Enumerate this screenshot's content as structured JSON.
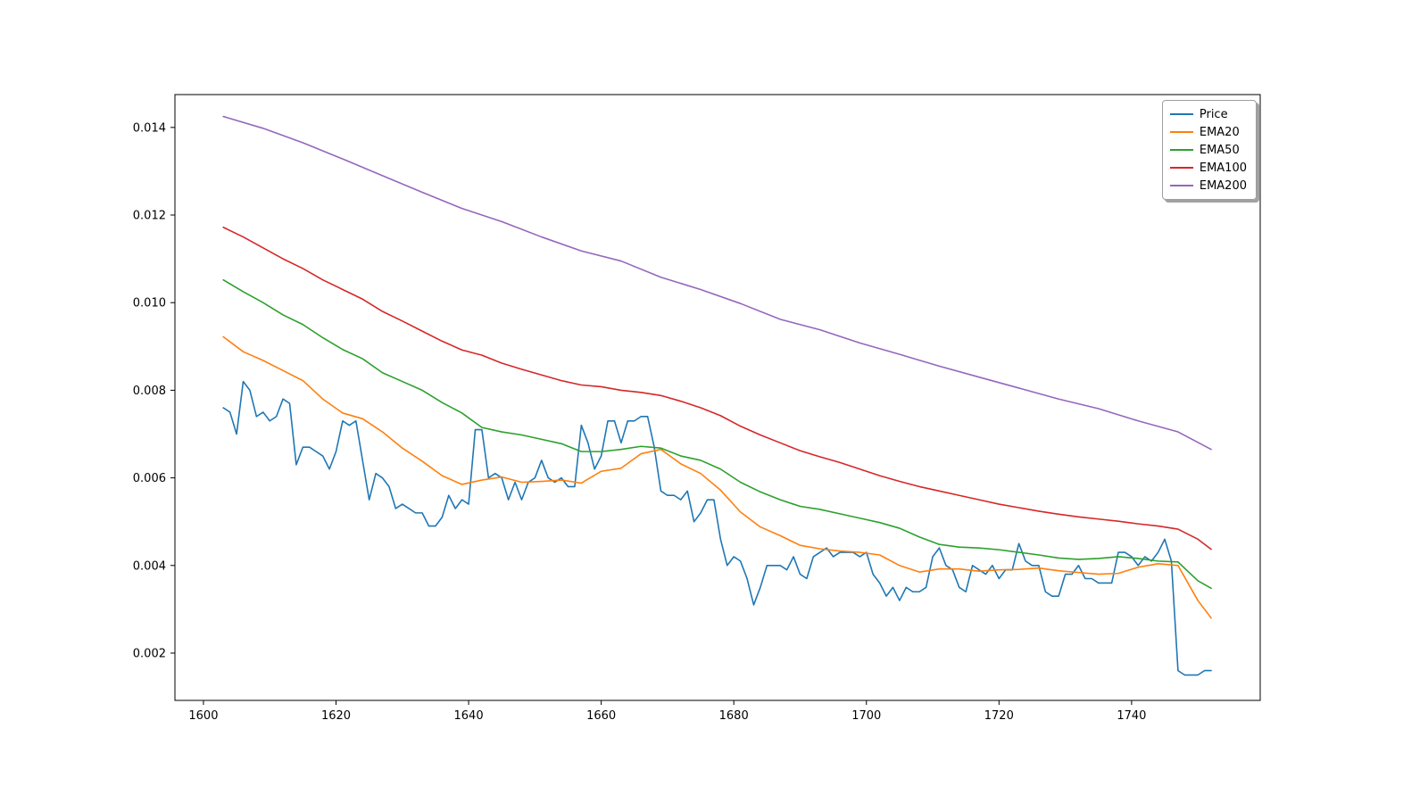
{
  "figure": {
    "background": "#ffffff"
  },
  "chart_data": {
    "type": "line",
    "title": "",
    "xlabel": "",
    "ylabel": "",
    "grid": false,
    "legend_position": "upper right",
    "xlim": [
      1595.7,
      1759.4
    ],
    "ylim": [
      0.00092,
      0.01475
    ],
    "x_ticks": [
      1600,
      1620,
      1640,
      1660,
      1680,
      1700,
      1720,
      1740
    ],
    "x_tick_labels": [
      "1600",
      "1620",
      "1640",
      "1660",
      "1680",
      "1700",
      "1720",
      "1740"
    ],
    "y_ticks": [
      0.002,
      0.004,
      0.006,
      0.008,
      0.01,
      0.012,
      0.014
    ],
    "y_tick_labels": [
      "0.002",
      "0.004",
      "0.006",
      "0.008",
      "0.010",
      "0.012",
      "0.014"
    ],
    "series": [
      {
        "name": "Price",
        "color": "#1f77b4",
        "x0": 1603,
        "dx": 1,
        "y": [
          0.0076,
          0.0075,
          0.007,
          0.0082,
          0.008,
          0.0074,
          0.0075,
          0.0073,
          0.0074,
          0.0078,
          0.0077,
          0.0063,
          0.0067,
          0.0067,
          0.0066,
          0.0065,
          0.0062,
          0.0066,
          0.0073,
          0.0072,
          0.0073,
          0.0064,
          0.0055,
          0.0061,
          0.006,
          0.0058,
          0.0053,
          0.0054,
          0.0053,
          0.0052,
          0.0052,
          0.0049,
          0.0049,
          0.0051,
          0.0056,
          0.0053,
          0.0055,
          0.0054,
          0.0071,
          0.0071,
          0.006,
          0.0061,
          0.006,
          0.0055,
          0.0059,
          0.0055,
          0.0059,
          0.006,
          0.0064,
          0.006,
          0.0059,
          0.006,
          0.0058,
          0.0058,
          0.0072,
          0.0068,
          0.0062,
          0.0065,
          0.0073,
          0.0073,
          0.0068,
          0.0073,
          0.0073,
          0.0074,
          0.0074,
          0.0067,
          0.0057,
          0.0056,
          0.0056,
          0.0055,
          0.0057,
          0.005,
          0.0052,
          0.0055,
          0.0055,
          0.0046,
          0.004,
          0.0042,
          0.0041,
          0.0037,
          0.0031,
          0.0035,
          0.004,
          0.004,
          0.004,
          0.0039,
          0.0042,
          0.0038,
          0.0037,
          0.0042,
          0.0043,
          0.0044,
          0.0042,
          0.0043,
          0.0043,
          0.0043,
          0.0042,
          0.0043,
          0.0038,
          0.0036,
          0.0033,
          0.0035,
          0.0032,
          0.0035,
          0.0034,
          0.0034,
          0.0035,
          0.0042,
          0.0044,
          0.004,
          0.0039,
          0.0035,
          0.0034,
          0.004,
          0.0039,
          0.0038,
          0.004,
          0.0037,
          0.0039,
          0.0039,
          0.0045,
          0.0041,
          0.004,
          0.004,
          0.0034,
          0.0033,
          0.0033,
          0.0038,
          0.0038,
          0.004,
          0.0037,
          0.0037,
          0.0036,
          0.0036,
          0.0036,
          0.0043,
          0.0043,
          0.0042,
          0.004,
          0.0042,
          0.0041,
          0.0043,
          0.0046,
          0.0041,
          0.0016,
          0.0015,
          0.0015,
          0.0015,
          0.0016,
          0.0016
        ]
      },
      {
        "name": "EMA20",
        "color": "#ff7f0e",
        "x": [
          1603,
          1606,
          1609,
          1612,
          1615,
          1618,
          1621,
          1624,
          1627,
          1630,
          1633,
          1636,
          1639,
          1642,
          1645,
          1648,
          1651,
          1654,
          1657,
          1660,
          1663,
          1666,
          1669,
          1672,
          1675,
          1678,
          1681,
          1684,
          1687,
          1690,
          1693,
          1696,
          1699,
          1702,
          1705,
          1708,
          1711,
          1714,
          1717,
          1720,
          1723,
          1726,
          1729,
          1732,
          1735,
          1738,
          1741,
          1744,
          1747,
          1750,
          1752
        ],
        "y": [
          0.00922,
          0.00888,
          0.00868,
          0.00845,
          0.00822,
          0.0078,
          0.00748,
          0.00735,
          0.00705,
          0.00668,
          0.00638,
          0.00605,
          0.00585,
          0.00595,
          0.00602,
          0.0059,
          0.00592,
          0.00595,
          0.00588,
          0.00615,
          0.00622,
          0.00655,
          0.00665,
          0.00632,
          0.0061,
          0.00572,
          0.00522,
          0.00488,
          0.00468,
          0.00446,
          0.00438,
          0.00433,
          0.0043,
          0.00424,
          0.004,
          0.00385,
          0.00392,
          0.00392,
          0.00387,
          0.0039,
          0.00391,
          0.00394,
          0.00388,
          0.00384,
          0.0038,
          0.00382,
          0.00396,
          0.00404,
          0.004,
          0.0032,
          0.0028
        ]
      },
      {
        "name": "EMA50",
        "color": "#2ca02c",
        "x": [
          1603,
          1606,
          1609,
          1612,
          1615,
          1618,
          1621,
          1624,
          1627,
          1630,
          1633,
          1636,
          1639,
          1642,
          1645,
          1648,
          1651,
          1654,
          1657,
          1660,
          1663,
          1666,
          1669,
          1672,
          1675,
          1678,
          1681,
          1684,
          1687,
          1690,
          1693,
          1696,
          1699,
          1702,
          1705,
          1708,
          1711,
          1714,
          1717,
          1720,
          1723,
          1726,
          1729,
          1732,
          1735,
          1738,
          1741,
          1744,
          1747,
          1750,
          1752
        ],
        "y": [
          0.01052,
          0.01025,
          0.01,
          0.00972,
          0.0095,
          0.0092,
          0.00893,
          0.00872,
          0.0084,
          0.0082,
          0.008,
          0.00772,
          0.00748,
          0.00715,
          0.00705,
          0.00698,
          0.00688,
          0.00678,
          0.0066,
          0.0066,
          0.00665,
          0.00672,
          0.00668,
          0.0065,
          0.0064,
          0.0062,
          0.0059,
          0.00568,
          0.0055,
          0.00535,
          0.00528,
          0.00518,
          0.00508,
          0.00498,
          0.00485,
          0.00465,
          0.00448,
          0.00442,
          0.0044,
          0.00436,
          0.0043,
          0.00424,
          0.00417,
          0.00414,
          0.00416,
          0.0042,
          0.00416,
          0.0041,
          0.00408,
          0.00365,
          0.00348
        ]
      },
      {
        "name": "EMA100",
        "color": "#d62728",
        "x": [
          1603,
          1606,
          1609,
          1612,
          1615,
          1618,
          1621,
          1624,
          1627,
          1630,
          1633,
          1636,
          1639,
          1642,
          1645,
          1648,
          1651,
          1654,
          1657,
          1660,
          1663,
          1666,
          1669,
          1672,
          1675,
          1678,
          1681,
          1684,
          1687,
          1690,
          1693,
          1696,
          1699,
          1702,
          1705,
          1708,
          1711,
          1714,
          1717,
          1720,
          1723,
          1726,
          1729,
          1732,
          1735,
          1738,
          1741,
          1744,
          1747,
          1750,
          1752
        ],
        "y": [
          0.01172,
          0.0115,
          0.01125,
          0.011,
          0.01078,
          0.01052,
          0.0103,
          0.01008,
          0.0098,
          0.00958,
          0.00935,
          0.00912,
          0.00892,
          0.0088,
          0.00862,
          0.00848,
          0.00835,
          0.00822,
          0.00812,
          0.00808,
          0.008,
          0.00795,
          0.00788,
          0.00775,
          0.0076,
          0.00742,
          0.00718,
          0.00698,
          0.0068,
          0.00662,
          0.00648,
          0.00635,
          0.0062,
          0.00605,
          0.00592,
          0.0058,
          0.0057,
          0.0056,
          0.0055,
          0.0054,
          0.00532,
          0.00524,
          0.00517,
          0.00511,
          0.00506,
          0.00501,
          0.00495,
          0.0049,
          0.00483,
          0.0046,
          0.00437
        ]
      },
      {
        "name": "EMA200",
        "color": "#9467bd",
        "x": [
          1603,
          1609,
          1615,
          1621,
          1627,
          1633,
          1639,
          1645,
          1651,
          1657,
          1663,
          1669,
          1675,
          1681,
          1687,
          1693,
          1699,
          1705,
          1711,
          1717,
          1723,
          1729,
          1735,
          1741,
          1747,
          1752
        ],
        "y": [
          0.01425,
          0.01398,
          0.01365,
          0.01328,
          0.0129,
          0.01252,
          0.01215,
          0.01185,
          0.0115,
          0.01118,
          0.01095,
          0.01058,
          0.0103,
          0.00998,
          0.00962,
          0.00938,
          0.00908,
          0.00882,
          0.00855,
          0.0083,
          0.00805,
          0.0078,
          0.00758,
          0.0073,
          0.00705,
          0.00665
        ]
      }
    ]
  }
}
